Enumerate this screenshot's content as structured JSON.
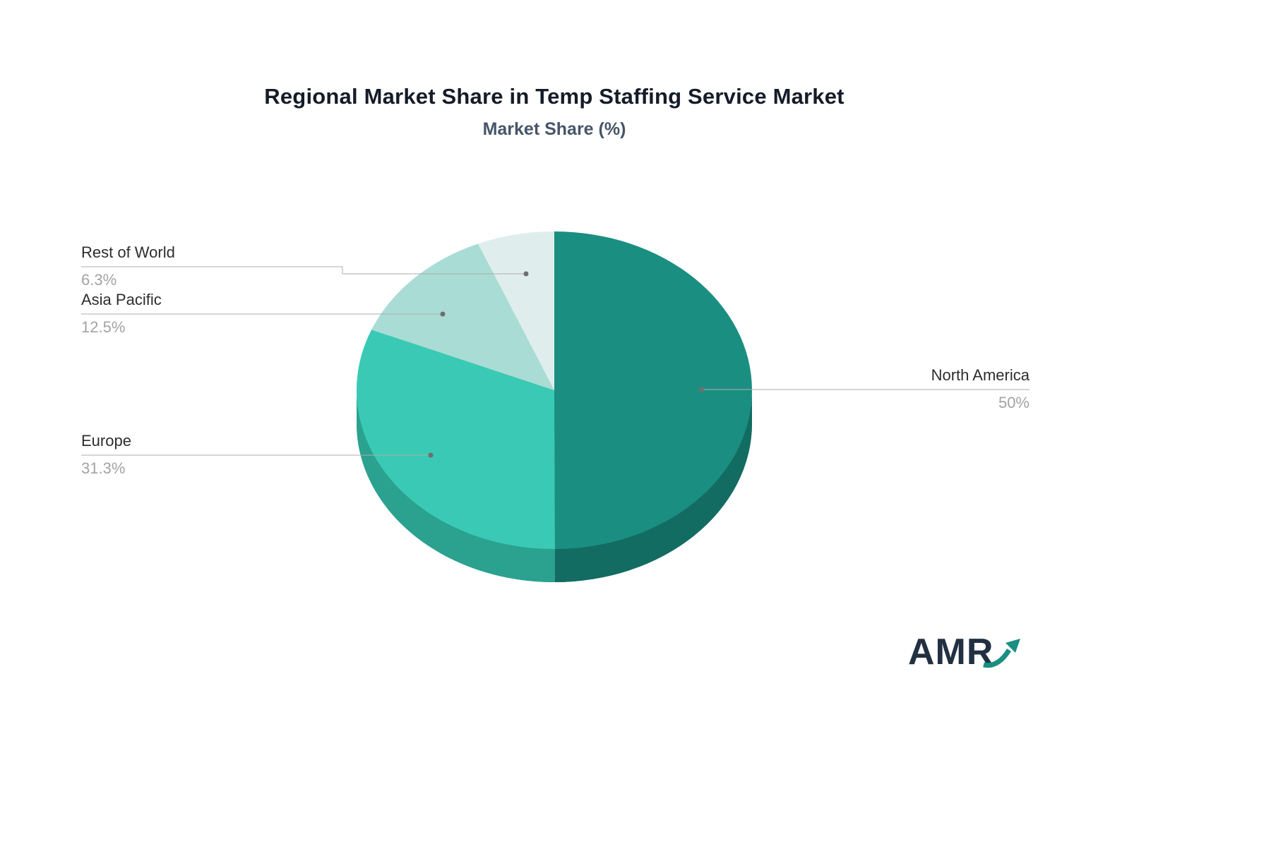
{
  "chart_data": {
    "type": "pie",
    "style": "3d-pie",
    "title": "Regional Market Share in Temp Staffing Service Market",
    "subtitle": "Market Share (%)",
    "categories": [
      "North America",
      "Europe",
      "Asia Pacific",
      "Rest of World"
    ],
    "values": [
      50,
      31.3,
      12.5,
      6.3
    ],
    "display_values": [
      "50%",
      "31.3%",
      "12.5%",
      "6.3%"
    ],
    "colors": [
      "#1b8e82",
      "#3ac9b4",
      "#a9dcd5",
      "#dfeeec"
    ],
    "side_colors": [
      "#136c62",
      "#2ba18f",
      "#8fc7bf",
      "#c8ddd9"
    ],
    "start_angle_deg": 0,
    "direction": "clockwise",
    "legend": "none",
    "labels_position": "outside-with-leader-lines",
    "leader_line_color": "#adadad",
    "label_name_color": "#2d2d2d",
    "label_value_color": "#a3a3a3"
  },
  "branding": {
    "logo_text": "AMR",
    "logo_color": "#223042",
    "logo_arrow_color": "#1b8e82"
  }
}
